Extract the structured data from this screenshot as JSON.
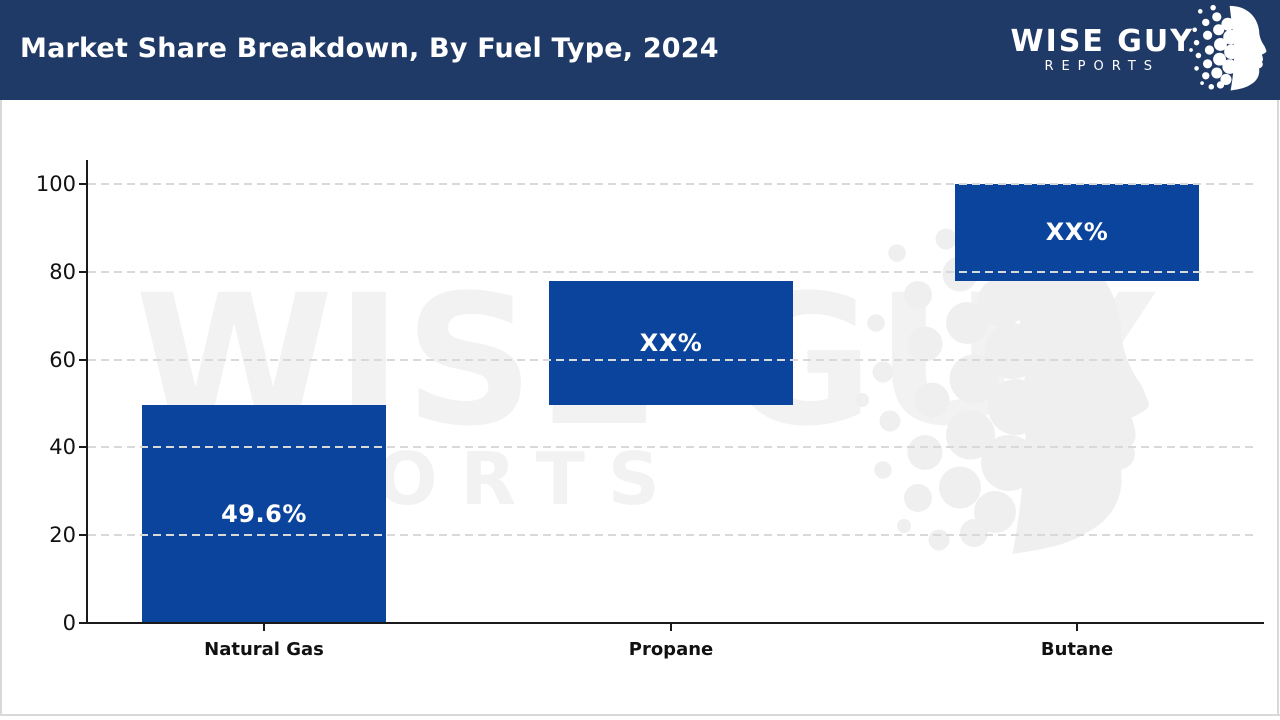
{
  "header": {
    "title": "Market Share Breakdown, By Fuel Type, 2024",
    "logo": {
      "line1": "WISE GUY",
      "line2": "REPORTS",
      "face_icon": "dot-face-profile-icon"
    }
  },
  "watermark": {
    "line1": "WISE GUY",
    "line2": "REPORTS",
    "face_icon": "dot-face-profile-icon"
  },
  "colors": {
    "header_bg": "#203a67",
    "title_text": "#ffffff",
    "bar": "#0a449c",
    "bar_label": "#ffffff",
    "grid": "#d9d9d9",
    "axis": "#1a1a1a",
    "watermark": "#f2f2f2",
    "card_border": "#d9d9d9"
  },
  "chart_data": {
    "type": "bar",
    "subtype": "waterfall",
    "title": "Market Share Breakdown, By Fuel Type, 2024",
    "categories": [
      "Natural Gas",
      "Propane",
      "Butane"
    ],
    "series": [
      {
        "name": "Market share (%)",
        "segments": [
          {
            "category": "Natural Gas",
            "start": 0,
            "end": 49.6,
            "label": "49.6%"
          },
          {
            "category": "Propane",
            "start": 49.6,
            "end": 78,
            "label": "XX%"
          },
          {
            "category": "Butane",
            "start": 78,
            "end": 100,
            "label": "XX%"
          }
        ]
      }
    ],
    "xlabel": "",
    "ylabel": "",
    "ylim": [
      0,
      100
    ],
    "yticks": [
      0,
      20,
      40,
      60,
      80,
      100
    ],
    "grid": "horizontal-dashed",
    "legend": "none"
  }
}
